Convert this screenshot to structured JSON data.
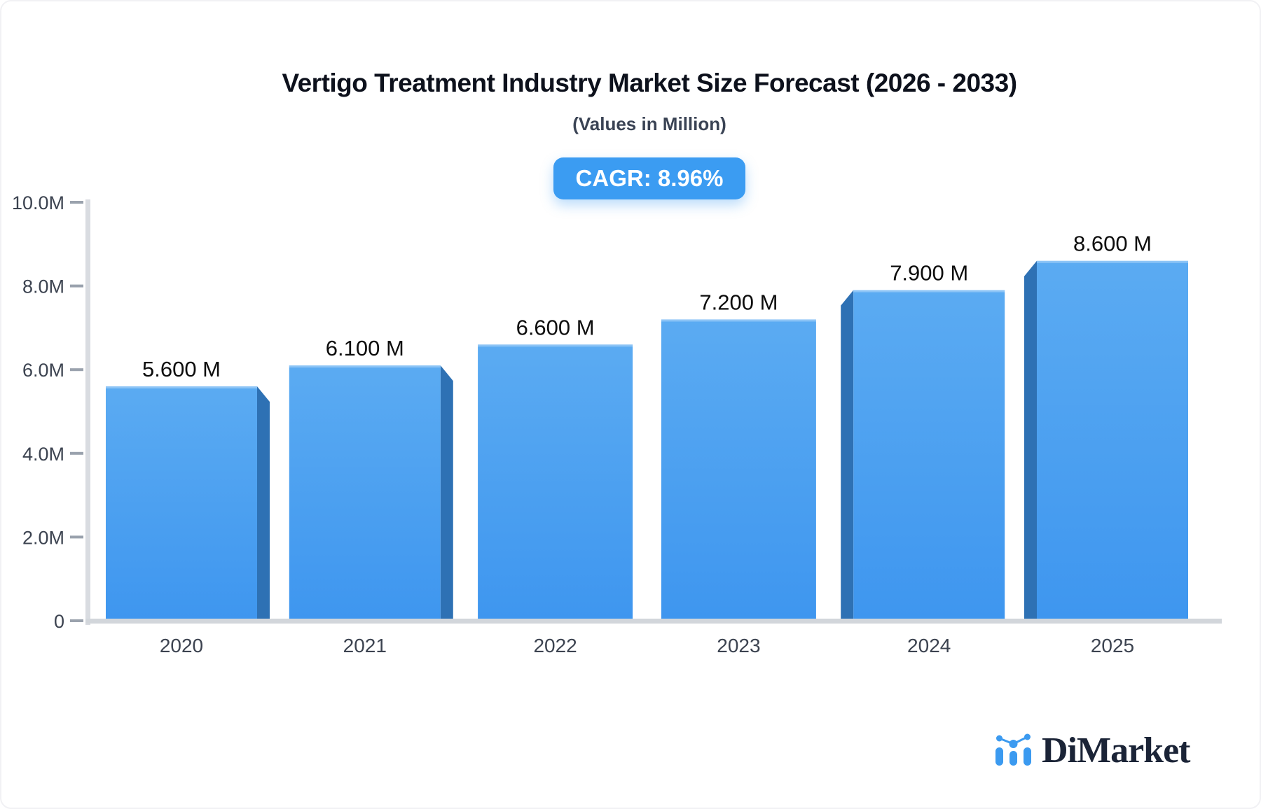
{
  "header": {
    "title": "Vertigo Treatment Industry Market Size Forecast (2026 - 2033)",
    "subtitle": "(Values in Million)",
    "cagr_label": "CAGR: 8.96%"
  },
  "brand": {
    "name": "DiMarket",
    "logo_icon": "bar-chart-logo-icon"
  },
  "colors": {
    "accent_blue": "#3b9cf2",
    "bar_gradient_top": "#5babf2",
    "bar_gradient_bottom": "#3e96ef",
    "bar_side_3d": "#2e71b4",
    "axis_line": "#d9dce1",
    "baseline": "#d2d6db",
    "tick_dash": "#9aa2ad",
    "tick_text": "#3c4350",
    "value_text": "#0d0d0d",
    "logo_blue": "#3b9af0",
    "logo_text": "#1b2437"
  },
  "chart_data": {
    "type": "bar",
    "title": "Vertigo Treatment Industry Market Size Forecast (2026 - 2033)",
    "subtitle": "(Values in Million)",
    "unit": "Million",
    "cagr": "8.96%",
    "categories": [
      "2020",
      "2021",
      "2022",
      "2023",
      "2024",
      "2025"
    ],
    "values": [
      5.6,
      6.1,
      6.6,
      7.2,
      7.9,
      8.6
    ],
    "value_labels": [
      "5.600 M",
      "6.100 M",
      "6.600 M",
      "7.200 M",
      "7.900 M",
      "8.600 M"
    ],
    "bar_3d_side": [
      "right",
      "right",
      "none",
      "none",
      "left",
      "left"
    ],
    "ylim": [
      0,
      10
    ],
    "y_ticks": [
      {
        "value": 0,
        "label": "0"
      },
      {
        "value": 2,
        "label": "2.0M"
      },
      {
        "value": 4,
        "label": "4.0M"
      },
      {
        "value": 6,
        "label": "6.0M"
      },
      {
        "value": 8,
        "label": "8.0M"
      },
      {
        "value": 10,
        "label": "10.0M"
      }
    ],
    "grid": false,
    "legend": false
  }
}
